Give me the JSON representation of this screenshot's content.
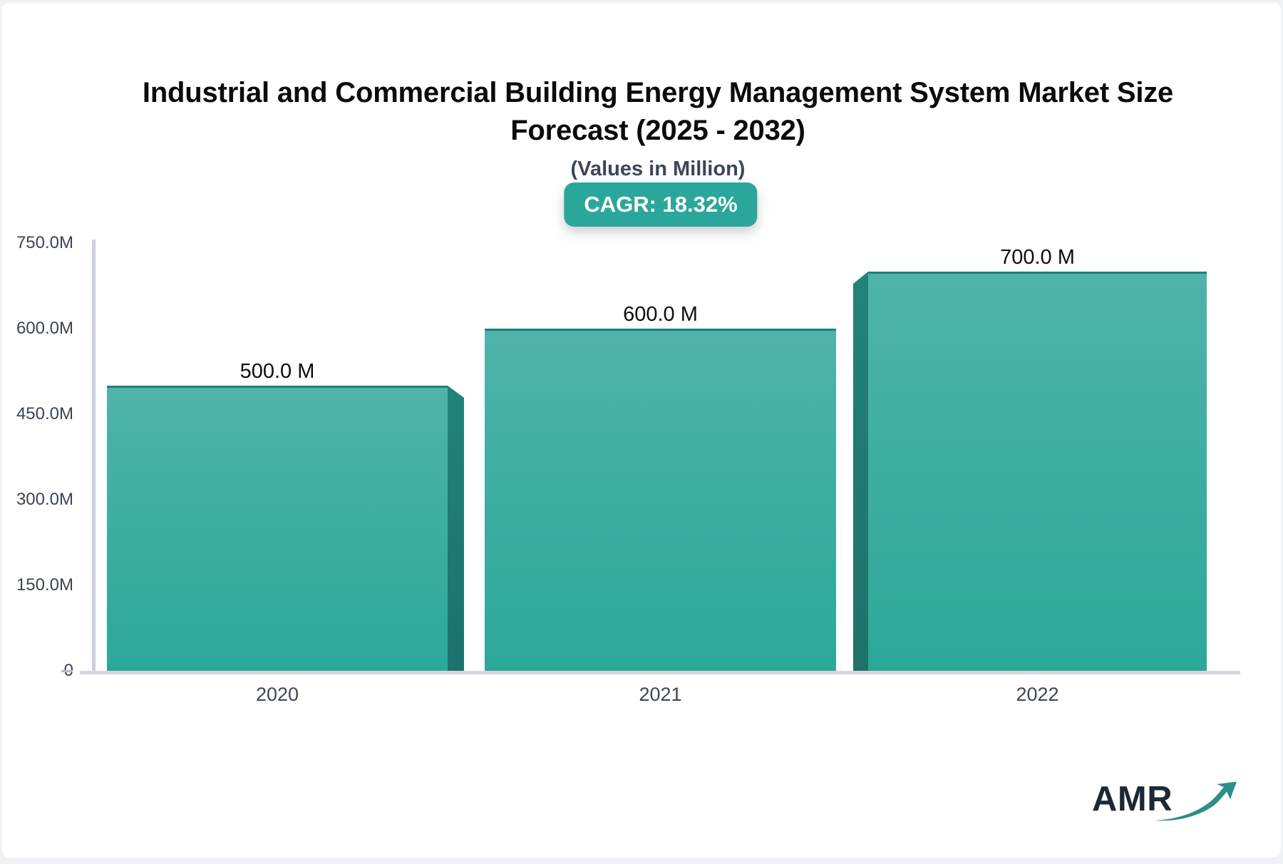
{
  "header": {
    "title_line1": "Industrial and Commercial Building Energy Management System Market Size",
    "title_line2": "Forecast (2025 - 2032)",
    "subtitle": "(Values in Million)",
    "cagr_label": "CAGR: 18.32%"
  },
  "chart_data": {
    "type": "bar",
    "title": "Industrial and Commercial Building Energy Management System Market Size Forecast (2025 - 2032)",
    "subtitle": "(Values in Million)",
    "cagr_percent": 18.32,
    "unit": "Million",
    "categories": [
      "2020",
      "2021",
      "2022"
    ],
    "values": [
      500.0,
      600.0,
      700.0
    ],
    "value_labels": [
      "500.0 M",
      "600.0 M",
      "700.0 M"
    ],
    "ylim": [
      0,
      750
    ],
    "y_ticks": [
      0,
      150,
      300,
      450,
      600,
      750
    ],
    "y_tick_labels": [
      "0",
      "150.0M",
      "300.0M",
      "450.0M",
      "600.0M",
      "750.0M"
    ],
    "grid": false,
    "legend": false
  },
  "logo": {
    "text": "AMR"
  },
  "colors": {
    "badge_bg": "#2aa79a",
    "bar_top": "#4fb3aa",
    "bar_bottom": "#2ba899",
    "bar_edge": "#1f7f79",
    "bar_side": "#1e746d",
    "axis_line": "#ccd1d9",
    "title_text": "#0b0b0c",
    "slate_text": "#3d4557"
  }
}
